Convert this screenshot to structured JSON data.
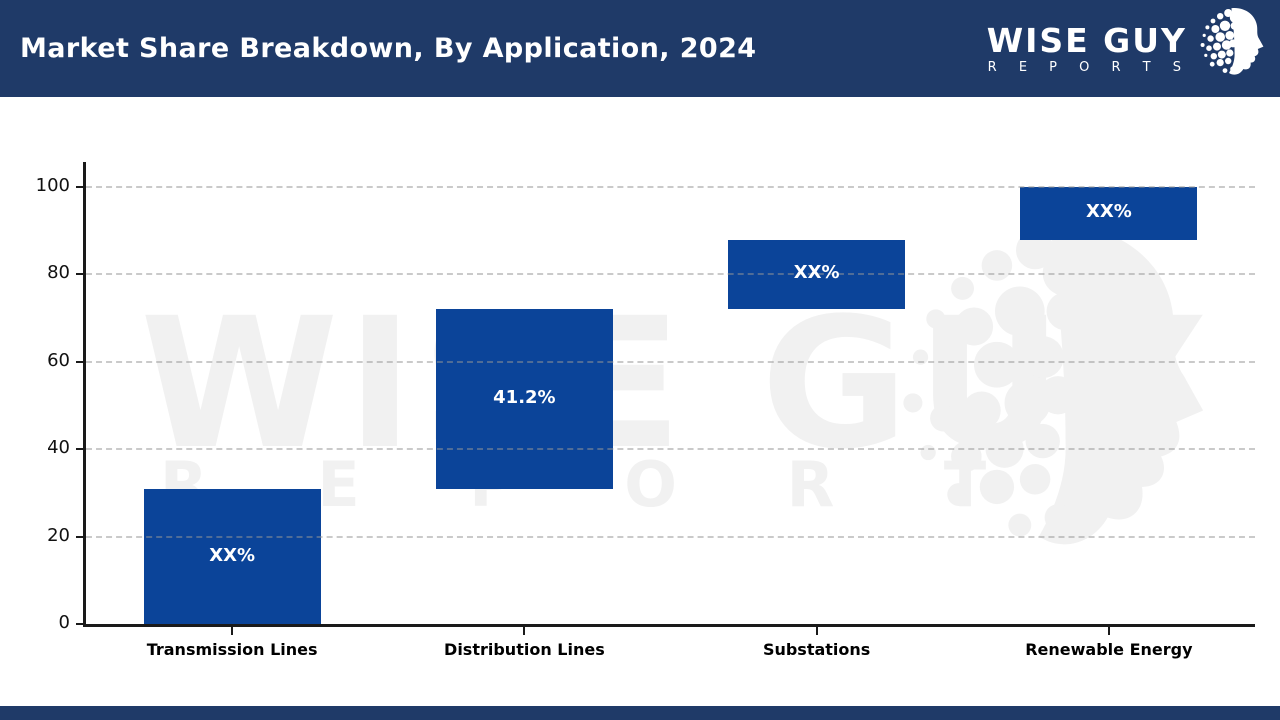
{
  "header": {
    "title": "Market Share Breakdown, By Application, 2024",
    "logo": {
      "line1": "WISE GUY",
      "line2": "R E P O R T S"
    }
  },
  "watermark": {
    "line1": "WISE GUY",
    "line2": "R E P O R T S"
  },
  "colors": {
    "header_bg": "#1f3a68",
    "footer_bg": "#1f3a68",
    "bar": "#0b4499",
    "bar_label": "#ffffff",
    "grid": "rgba(150,150,150,0.5)",
    "axis": "#1a1a1a"
  },
  "chart_data": {
    "type": "bar",
    "subtype": "waterfall",
    "title": "Market Share Breakdown, By Application, 2024",
    "categories": [
      "Transmission Lines",
      "Distribution Lines",
      "Substations",
      "Renewable Energy"
    ],
    "bars": [
      {
        "category": "Transmission Lines",
        "start": 0,
        "end": 30.8,
        "label": "XX%"
      },
      {
        "category": "Distribution Lines",
        "start": 30.8,
        "end": 72.0,
        "label": "41.2%"
      },
      {
        "category": "Substations",
        "start": 72.0,
        "end": 87.8,
        "label": "XX%"
      },
      {
        "category": "Renewable Energy",
        "start": 87.8,
        "end": 100,
        "label": "XX%"
      }
    ],
    "yticks": [
      0,
      20,
      40,
      60,
      80,
      100
    ],
    "ylim": [
      0,
      105.5
    ],
    "xlabel": "",
    "ylabel": "",
    "grid": true,
    "legend": false
  }
}
